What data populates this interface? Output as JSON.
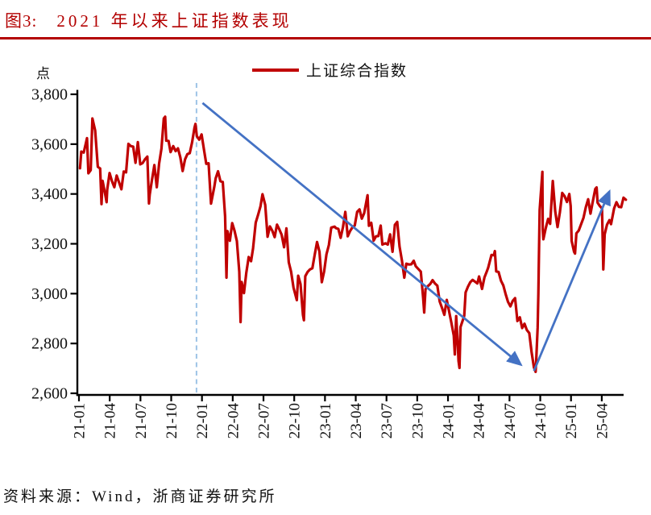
{
  "header": {
    "figure_label": "图3:",
    "title": "2021 年以来上证指数表现"
  },
  "footer": {
    "source": "资料来源：Wind，浙商证券研究所"
  },
  "colors": {
    "title_red": "#b30000",
    "series_red": "#c00000",
    "arrow_blue": "#4472c4",
    "dashed_blue": "#9dc3e6",
    "axis_black": "#000000",
    "text_black": "#111111"
  },
  "chart_data": {
    "type": "line",
    "title": "2021 年以来上证指数表现",
    "unit_label": "点",
    "legend": {
      "label": "上证综合指数"
    },
    "grid": false,
    "y_axis": {
      "min": 2600,
      "max": 3800,
      "tick_step": 200,
      "tick_values": [
        3800,
        3600,
        3400,
        3200,
        3000,
        2800,
        2600
      ],
      "tick_labels": [
        "3,800",
        "3,600",
        "3,400",
        "3,200",
        "3,000",
        "2,800",
        "2,600"
      ]
    },
    "x_axis": {
      "tick_labels": [
        "21-01",
        "21-04",
        "21-07",
        "21-10",
        "22-01",
        "22-04",
        "22-07",
        "22-10",
        "23-01",
        "23-04",
        "23-07",
        "23-10",
        "24-01",
        "24-04",
        "24-07",
        "24-10",
        "25-01",
        "25-04"
      ]
    },
    "annotations": {
      "dashed_vline": {
        "date": "2021-12-16"
      },
      "arrows": [
        {
          "name": "downtrend-arrow",
          "from": [
            "2022-01-03",
            3765
          ],
          "to": [
            "2024-08-05",
            2715
          ]
        },
        {
          "name": "uptrend-arrow",
          "from": [
            "2024-09-13",
            2690
          ],
          "to": [
            "2025-04-25",
            3410
          ]
        }
      ]
    },
    "series": [
      {
        "name": "上证综合指数",
        "color": "#c00000",
        "points": [
          [
            "2021-01-04",
            3503
          ],
          [
            "2021-01-08",
            3570
          ],
          [
            "2021-01-15",
            3566
          ],
          [
            "2021-01-22",
            3607
          ],
          [
            "2021-01-25",
            3624
          ],
          [
            "2021-01-29",
            3483
          ],
          [
            "2021-02-05",
            3496
          ],
          [
            "2021-02-10",
            3703
          ],
          [
            "2021-02-18",
            3655
          ],
          [
            "2021-02-26",
            3509
          ],
          [
            "2021-03-05",
            3502
          ],
          [
            "2021-03-09",
            3359
          ],
          [
            "2021-03-12",
            3453
          ],
          [
            "2021-03-19",
            3405
          ],
          [
            "2021-03-24",
            3367
          ],
          [
            "2021-03-26",
            3418
          ],
          [
            "2021-04-02",
            3484
          ],
          [
            "2021-04-09",
            3451
          ],
          [
            "2021-04-16",
            3427
          ],
          [
            "2021-04-23",
            3474
          ],
          [
            "2021-04-30",
            3447
          ],
          [
            "2021-05-07",
            3419
          ],
          [
            "2021-05-14",
            3490
          ],
          [
            "2021-05-21",
            3487
          ],
          [
            "2021-05-28",
            3601
          ],
          [
            "2021-06-04",
            3592
          ],
          [
            "2021-06-11",
            3590
          ],
          [
            "2021-06-18",
            3525
          ],
          [
            "2021-06-25",
            3608
          ],
          [
            "2021-07-02",
            3519
          ],
          [
            "2021-07-09",
            3524
          ],
          [
            "2021-07-16",
            3539
          ],
          [
            "2021-07-23",
            3550
          ],
          [
            "2021-07-28",
            3362
          ],
          [
            "2021-07-30",
            3397
          ],
          [
            "2021-08-06",
            3458
          ],
          [
            "2021-08-13",
            3516
          ],
          [
            "2021-08-20",
            3427
          ],
          [
            "2021-08-27",
            3522
          ],
          [
            "2021-09-03",
            3582
          ],
          [
            "2021-09-10",
            3703
          ],
          [
            "2021-09-14",
            3710
          ],
          [
            "2021-09-17",
            3614
          ],
          [
            "2021-09-24",
            3613
          ],
          [
            "2021-09-30",
            3568
          ],
          [
            "2021-10-08",
            3592
          ],
          [
            "2021-10-15",
            3572
          ],
          [
            "2021-10-22",
            3583
          ],
          [
            "2021-10-29",
            3547
          ],
          [
            "2021-11-05",
            3492
          ],
          [
            "2021-11-12",
            3539
          ],
          [
            "2021-11-19",
            3560
          ],
          [
            "2021-11-26",
            3564
          ],
          [
            "2021-12-03",
            3607
          ],
          [
            "2021-12-10",
            3666
          ],
          [
            "2021-12-13",
            3681
          ],
          [
            "2021-12-17",
            3632
          ],
          [
            "2021-12-24",
            3618
          ],
          [
            "2021-12-31",
            3639
          ],
          [
            "2022-01-07",
            3579
          ],
          [
            "2022-01-14",
            3521
          ],
          [
            "2022-01-21",
            3523
          ],
          [
            "2022-01-28",
            3361
          ],
          [
            "2022-02-07",
            3429
          ],
          [
            "2022-02-11",
            3463
          ],
          [
            "2022-02-18",
            3491
          ],
          [
            "2022-02-25",
            3451
          ],
          [
            "2022-03-04",
            3448
          ],
          [
            "2022-03-11",
            3310
          ],
          [
            "2022-03-15",
            3064
          ],
          [
            "2022-03-18",
            3251
          ],
          [
            "2022-03-25",
            3212
          ],
          [
            "2022-04-01",
            3283
          ],
          [
            "2022-04-08",
            3252
          ],
          [
            "2022-04-15",
            3211
          ],
          [
            "2022-04-22",
            3087
          ],
          [
            "2022-04-26",
            2886
          ],
          [
            "2022-04-29",
            3047
          ],
          [
            "2022-05-06",
            3002
          ],
          [
            "2022-05-13",
            3084
          ],
          [
            "2022-05-20",
            3147
          ],
          [
            "2022-05-27",
            3130
          ],
          [
            "2022-06-02",
            3182
          ],
          [
            "2022-06-10",
            3285
          ],
          [
            "2022-06-17",
            3317
          ],
          [
            "2022-06-24",
            3350
          ],
          [
            "2022-06-30",
            3399
          ],
          [
            "2022-07-08",
            3356
          ],
          [
            "2022-07-15",
            3228
          ],
          [
            "2022-07-22",
            3270
          ],
          [
            "2022-07-29",
            3253
          ],
          [
            "2022-08-05",
            3227
          ],
          [
            "2022-08-12",
            3277
          ],
          [
            "2022-08-19",
            3258
          ],
          [
            "2022-08-26",
            3236
          ],
          [
            "2022-09-02",
            3186
          ],
          [
            "2022-09-09",
            3262
          ],
          [
            "2022-09-16",
            3126
          ],
          [
            "2022-09-23",
            3088
          ],
          [
            "2022-09-30",
            3024
          ],
          [
            "2022-10-10",
            2974
          ],
          [
            "2022-10-14",
            3072
          ],
          [
            "2022-10-21",
            3038
          ],
          [
            "2022-10-28",
            2915
          ],
          [
            "2022-10-31",
            2893
          ],
          [
            "2022-11-04",
            3070
          ],
          [
            "2022-11-11",
            3087
          ],
          [
            "2022-11-18",
            3097
          ],
          [
            "2022-11-25",
            3102
          ],
          [
            "2022-12-02",
            3156
          ],
          [
            "2022-12-09",
            3207
          ],
          [
            "2022-12-16",
            3168
          ],
          [
            "2022-12-23",
            3046
          ],
          [
            "2022-12-30",
            3089
          ],
          [
            "2023-01-06",
            3158
          ],
          [
            "2023-01-13",
            3195
          ],
          [
            "2023-01-20",
            3265
          ],
          [
            "2023-01-30",
            3269
          ],
          [
            "2023-02-03",
            3263
          ],
          [
            "2023-02-10",
            3260
          ],
          [
            "2023-02-17",
            3224
          ],
          [
            "2023-02-24",
            3267
          ],
          [
            "2023-03-03",
            3328
          ],
          [
            "2023-03-10",
            3230
          ],
          [
            "2023-03-17",
            3251
          ],
          [
            "2023-03-24",
            3266
          ],
          [
            "2023-03-31",
            3273
          ],
          [
            "2023-04-07",
            3328
          ],
          [
            "2023-04-14",
            3338
          ],
          [
            "2023-04-21",
            3301
          ],
          [
            "2023-04-28",
            3323
          ],
          [
            "2023-05-08",
            3395
          ],
          [
            "2023-05-12",
            3272
          ],
          [
            "2023-05-19",
            3284
          ],
          [
            "2023-05-26",
            3213
          ],
          [
            "2023-06-02",
            3230
          ],
          [
            "2023-06-09",
            3231
          ],
          [
            "2023-06-16",
            3273
          ],
          [
            "2023-06-21",
            3197
          ],
          [
            "2023-06-30",
            3202
          ],
          [
            "2023-07-07",
            3197
          ],
          [
            "2023-07-14",
            3238
          ],
          [
            "2023-07-21",
            3168
          ],
          [
            "2023-07-28",
            3276
          ],
          [
            "2023-08-04",
            3288
          ],
          [
            "2023-08-11",
            3189
          ],
          [
            "2023-08-18",
            3132
          ],
          [
            "2023-08-25",
            3064
          ],
          [
            "2023-08-31",
            3120
          ],
          [
            "2023-09-08",
            3117
          ],
          [
            "2023-09-15",
            3118
          ],
          [
            "2023-09-22",
            3132
          ],
          [
            "2023-09-28",
            3110
          ],
          [
            "2023-10-13",
            3088
          ],
          [
            "2023-10-20",
            2983
          ],
          [
            "2023-10-23",
            2924
          ],
          [
            "2023-10-27",
            3018
          ],
          [
            "2023-11-03",
            3030
          ],
          [
            "2023-11-10",
            3039
          ],
          [
            "2023-11-17",
            3054
          ],
          [
            "2023-11-24",
            3041
          ],
          [
            "2023-12-01",
            3032
          ],
          [
            "2023-12-08",
            2969
          ],
          [
            "2023-12-15",
            2943
          ],
          [
            "2023-12-22",
            2915
          ],
          [
            "2023-12-29",
            2975
          ],
          [
            "2024-01-05",
            2929
          ],
          [
            "2024-01-12",
            2882
          ],
          [
            "2024-01-19",
            2832
          ],
          [
            "2024-01-22",
            2756
          ],
          [
            "2024-01-26",
            2910
          ],
          [
            "2024-01-31",
            2789
          ],
          [
            "2024-02-02",
            2730
          ],
          [
            "2024-02-05",
            2702
          ],
          [
            "2024-02-08",
            2866
          ],
          [
            "2024-02-19",
            2911
          ],
          [
            "2024-02-23",
            3005
          ],
          [
            "2024-03-01",
            3028
          ],
          [
            "2024-03-08",
            3046
          ],
          [
            "2024-03-15",
            3055
          ],
          [
            "2024-03-22",
            3048
          ],
          [
            "2024-03-29",
            3041
          ],
          [
            "2024-04-03",
            3069
          ],
          [
            "2024-04-12",
            3019
          ],
          [
            "2024-04-19",
            3065
          ],
          [
            "2024-04-26",
            3089
          ],
          [
            "2024-04-30",
            3104
          ],
          [
            "2024-05-10",
            3155
          ],
          [
            "2024-05-17",
            3154
          ],
          [
            "2024-05-20",
            3171
          ],
          [
            "2024-05-24",
            3089
          ],
          [
            "2024-05-31",
            3087
          ],
          [
            "2024-06-07",
            3052
          ],
          [
            "2024-06-14",
            3033
          ],
          [
            "2024-06-21",
            2998
          ],
          [
            "2024-06-28",
            2967
          ],
          [
            "2024-07-05",
            2949
          ],
          [
            "2024-07-12",
            2971
          ],
          [
            "2024-07-19",
            2982
          ],
          [
            "2024-07-26",
            2890
          ],
          [
            "2024-08-02",
            2905
          ],
          [
            "2024-08-09",
            2862
          ],
          [
            "2024-08-16",
            2879
          ],
          [
            "2024-08-23",
            2854
          ],
          [
            "2024-08-30",
            2842
          ],
          [
            "2024-09-06",
            2765
          ],
          [
            "2024-09-13",
            2704
          ],
          [
            "2024-09-18",
            2686
          ],
          [
            "2024-09-20",
            2737
          ],
          [
            "2024-09-24",
            2863
          ],
          [
            "2024-09-26",
            3000
          ],
          [
            "2024-09-27",
            3088
          ],
          [
            "2024-09-30",
            3336
          ],
          [
            "2024-10-08",
            3489
          ],
          [
            "2024-10-09",
            3258
          ],
          [
            "2024-10-11",
            3218
          ],
          [
            "2024-10-18",
            3262
          ],
          [
            "2024-10-25",
            3300
          ],
          [
            "2024-10-31",
            3280
          ],
          [
            "2024-11-08",
            3452
          ],
          [
            "2024-11-15",
            3331
          ],
          [
            "2024-11-22",
            3267
          ],
          [
            "2024-11-29",
            3326
          ],
          [
            "2024-12-06",
            3404
          ],
          [
            "2024-12-13",
            3391
          ],
          [
            "2024-12-20",
            3368
          ],
          [
            "2024-12-27",
            3400
          ],
          [
            "2024-12-31",
            3352
          ],
          [
            "2025-01-03",
            3212
          ],
          [
            "2025-01-10",
            3168
          ],
          [
            "2025-01-13",
            3161
          ],
          [
            "2025-01-17",
            3242
          ],
          [
            "2025-01-24",
            3253
          ],
          [
            "2025-02-07",
            3304
          ],
          [
            "2025-02-14",
            3347
          ],
          [
            "2025-02-21",
            3379
          ],
          [
            "2025-02-28",
            3321
          ],
          [
            "2025-03-07",
            3372
          ],
          [
            "2025-03-14",
            3420
          ],
          [
            "2025-03-18",
            3426
          ],
          [
            "2025-03-21",
            3365
          ],
          [
            "2025-03-28",
            3351
          ],
          [
            "2025-04-03",
            3342
          ],
          [
            "2025-04-07",
            3097
          ],
          [
            "2025-04-11",
            3238
          ],
          [
            "2025-04-18",
            3277
          ],
          [
            "2025-04-25",
            3295
          ],
          [
            "2025-04-30",
            3279
          ],
          [
            "2025-05-09",
            3342
          ],
          [
            "2025-05-16",
            3367
          ],
          [
            "2025-05-23",
            3348
          ],
          [
            "2025-05-30",
            3347
          ],
          [
            "2025-06-06",
            3385
          ],
          [
            "2025-06-13",
            3377
          ]
        ]
      }
    ]
  }
}
